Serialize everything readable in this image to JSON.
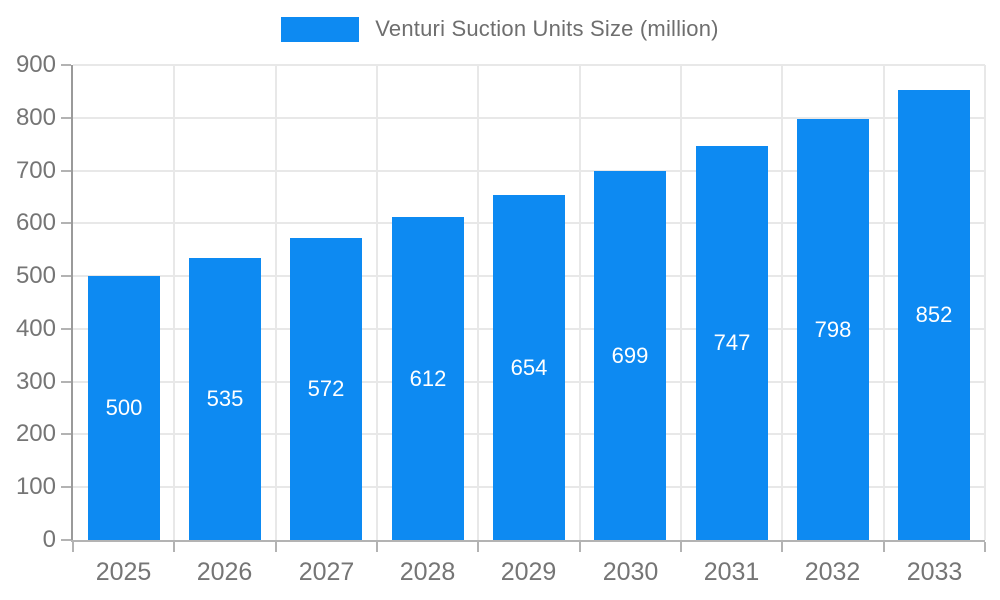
{
  "chart_data": {
    "type": "bar",
    "title": "Venturi Suction Units Size (million)",
    "legend": {
      "position": "top",
      "label": "Venturi Suction Units Size (million)"
    },
    "categories": [
      "2025",
      "2026",
      "2027",
      "2028",
      "2029",
      "2030",
      "2031",
      "2032",
      "2033"
    ],
    "series": [
      {
        "name": "Venturi Suction Units Size (million)",
        "values": [
          500,
          535,
          572,
          612,
          654,
          699,
          747,
          798,
          852
        ]
      }
    ],
    "data_labels": [
      "500",
      "535",
      "572",
      "612",
      "654",
      "699",
      "747",
      "798",
      "852"
    ],
    "xlabel": "",
    "ylabel": "",
    "ylim": [
      0,
      900
    ],
    "y_ticks": [
      0,
      100,
      200,
      300,
      400,
      500,
      600,
      700,
      800,
      900
    ],
    "grid": true
  },
  "colors": {
    "bar": "#0d8af2",
    "bar_value_text": "#ffffff",
    "axis_text": "#757575",
    "legend_text": "#6e6e6e",
    "gridline": "#e8e8e8",
    "axis_line": "#9a9a9a",
    "tick_line": "#b3b3b3",
    "background": "#ffffff"
  }
}
